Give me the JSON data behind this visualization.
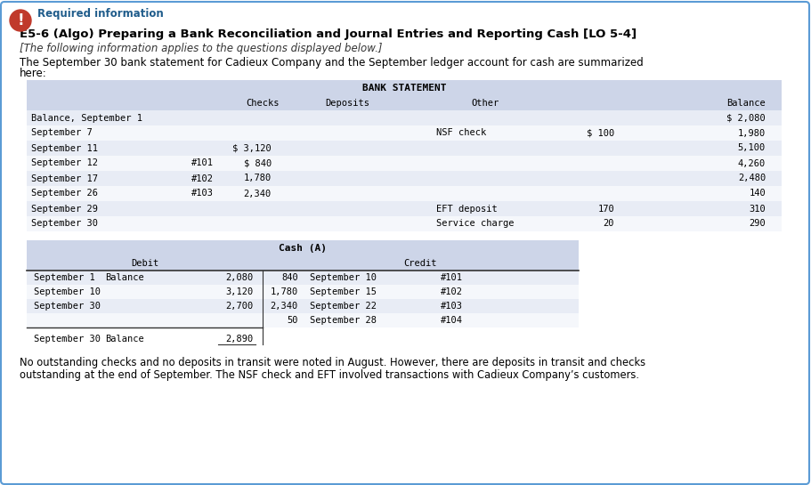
{
  "bg_color": "#ffffff",
  "border_color": "#5b9bd5",
  "icon_color": "#c0392b",
  "required_info_color": "#1f5c8b",
  "title": "E5-6 (Algo) Preparing a Bank Reconciliation and Journal Entries and Reporting Cash [LO 5-4]",
  "subtitle": "[The following information applies to the questions displayed below.]",
  "intro_line1": "The September 30 bank statement for Cadieux Company and the September ledger account for cash are summarized",
  "intro_line2": "here:",
  "bank_header": "BANK STATEMENT",
  "table_header_bg": "#cdd5e8",
  "table_row_bg1": "#e8ecf5",
  "table_row_bg2": "#f5f7fb",
  "cash_header": "Cash (A)",
  "footer_line1": "No outstanding checks and no deposits in transit were noted in August. However, there are deposits in transit and checks",
  "footer_line2": "outstanding at the end of September. The NSF check and EFT involved transactions with Cadieux Company’s customers."
}
